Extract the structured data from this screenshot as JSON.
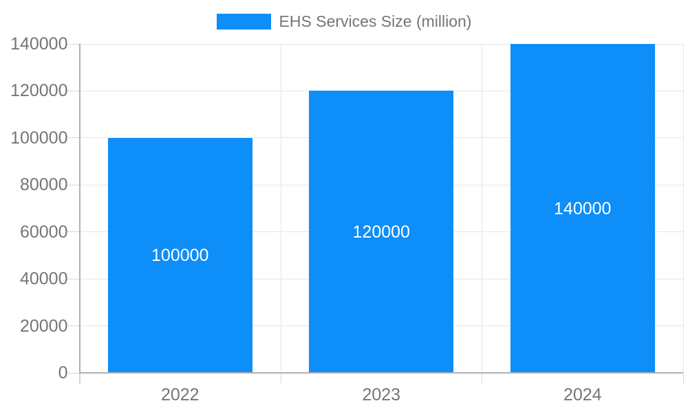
{
  "chart_data": {
    "type": "bar",
    "title": "",
    "legend": "EHS Services Size (million)",
    "legend_position": "top",
    "categories": [
      "2022",
      "2023",
      "2024"
    ],
    "series": [
      {
        "name": "EHS Services Size (million)",
        "values": [
          100000,
          120000,
          140000
        ]
      }
    ],
    "bar_value_labels": [
      "100000",
      "120000",
      "140000"
    ],
    "xlabel": "",
    "ylabel": "",
    "ylim": [
      0,
      140000
    ],
    "ytick_step": 20000,
    "ytick_labels": [
      "0",
      "20000",
      "40000",
      "60000",
      "80000",
      "100000",
      "120000",
      "140000"
    ],
    "grid": true,
    "colors": {
      "bar": "#0d8ef8",
      "gridline": "#e6e6e6",
      "tick": "#d6d6d6",
      "axis_line": "#b0b0b0",
      "axis_text": "#757575",
      "bar_label": "#ffffff",
      "background": "#ffffff"
    }
  }
}
